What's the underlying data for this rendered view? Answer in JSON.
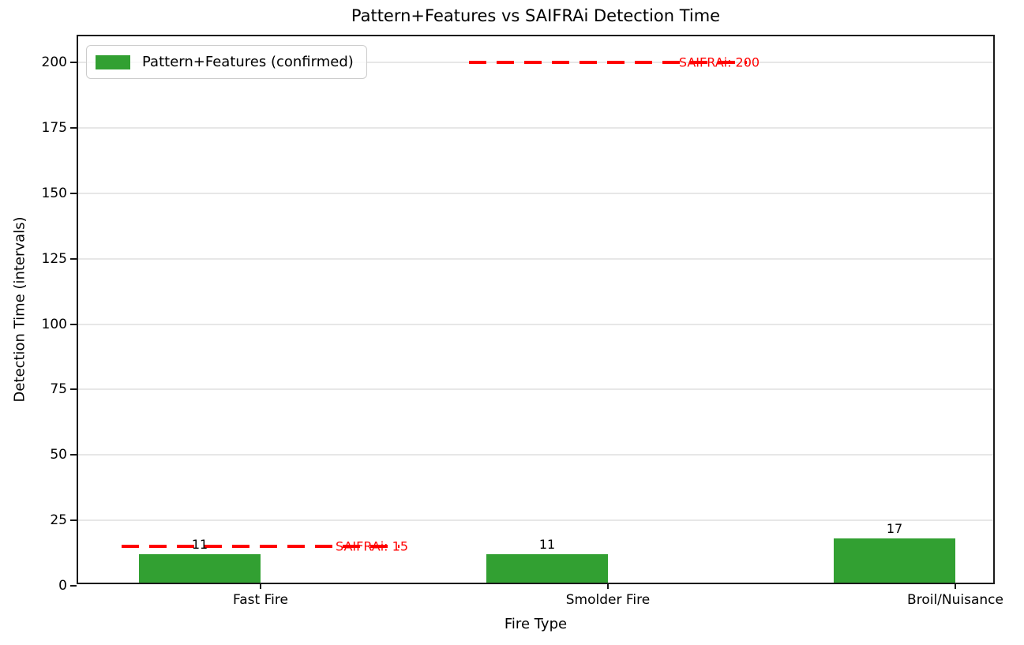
{
  "chart_data": {
    "type": "bar",
    "title": "Pattern+Features vs SAIFRAi Detection Time",
    "xlabel": "Fire Type",
    "ylabel": "Detection Time (intervals)",
    "categories": [
      "Fast Fire",
      "Smolder Fire",
      "Broil/Nuisance"
    ],
    "series": [
      {
        "name": "Pattern+Features (confirmed)",
        "values": [
          11,
          11,
          17
        ],
        "color": "#32a032"
      }
    ],
    "bar_value_labels": [
      "11",
      "11",
      "17"
    ],
    "reference_lines": [
      {
        "category_index": 0,
        "value": 15,
        "label": "SAIFRAi: 15",
        "color": "#ff0000",
        "style": "dashed"
      },
      {
        "category_index": 1,
        "value": 200,
        "label": "SAIFRAi: 200",
        "color": "#ff0000",
        "style": "dashed"
      }
    ],
    "yticks": [
      0,
      25,
      50,
      75,
      100,
      125,
      150,
      175,
      200
    ],
    "ylim": [
      0,
      210
    ],
    "grid": "horizontal",
    "grid_color": "#e7e7e7",
    "spine_color": "#1a1a1a",
    "legend": {
      "position": "upper left",
      "entries": [
        {
          "label": "Pattern+Features (confirmed)",
          "color": "#32a032"
        }
      ]
    }
  }
}
